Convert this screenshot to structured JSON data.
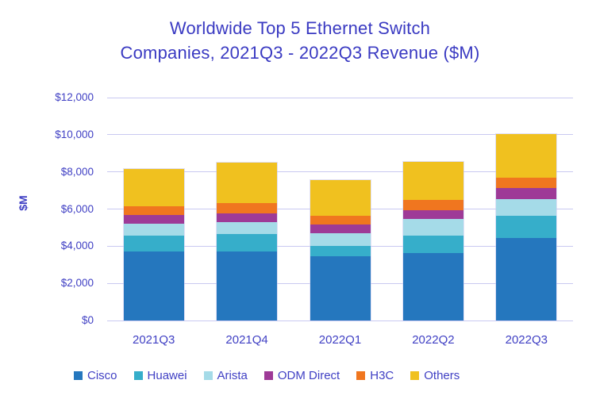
{
  "title": {
    "line1": "Worldwide Top 5 Ethernet Switch",
    "line2": "Companies, 2021Q3 - 2022Q3 Revenue ($M)"
  },
  "chart_data": {
    "type": "bar",
    "stacked": true,
    "title": "Worldwide Top 5 Ethernet Switch Companies, 2021Q3 - 2022Q3 Revenue ($M)",
    "xlabel": "",
    "ylabel": "$M",
    "ylim": [
      0,
      12000
    ],
    "ytick_step": 2000,
    "ytick_labels": [
      "$0",
      "$2,000",
      "$4,000",
      "$6,000",
      "$8,000",
      "$10,000",
      "$12,000"
    ],
    "grid": true,
    "legend_position": "bottom",
    "categories": [
      "2021Q3",
      "2021Q4",
      "2022Q1",
      "2022Q2",
      "2022Q3"
    ],
    "series": [
      {
        "name": "Cisco",
        "color": "#2577be",
        "values": [
          3730,
          3730,
          3440,
          3630,
          4440
        ]
      },
      {
        "name": "Huawei",
        "color": "#36aeca",
        "values": [
          830,
          915,
          570,
          960,
          1185
        ]
      },
      {
        "name": "Arista",
        "color": "#a5dbe8",
        "values": [
          630,
          630,
          670,
          860,
          900
        ]
      },
      {
        "name": "ODM Direct",
        "color": "#9e3a97",
        "values": [
          470,
          485,
          470,
          485,
          615
        ]
      },
      {
        "name": "H3C",
        "color": "#f0761f",
        "values": [
          500,
          545,
          470,
          540,
          545
        ]
      },
      {
        "name": "Others",
        "color": "#f0c11f",
        "values": [
          2000,
          2185,
          1950,
          2070,
          2355
        ]
      }
    ],
    "totals": [
      8160,
      8490,
      7570,
      8545,
      10040
    ]
  },
  "colors": {
    "text": "#4040c4",
    "title_text": "#3a3ac2",
    "gridline": "#c9c9f1",
    "background": "#ffffff"
  }
}
